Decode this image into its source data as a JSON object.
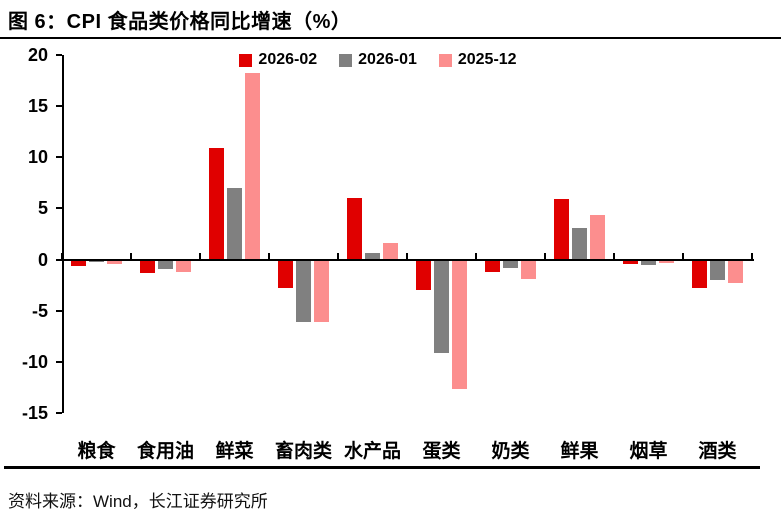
{
  "figure": {
    "title": "图 6：CPI 食品类价格同比增速（%）",
    "source_note": "资料来源：Wind，长江证券研究所"
  },
  "chart_data": {
    "type": "bar",
    "title": "CPI 食品类价格同比增速（%）",
    "categories": [
      "粮食",
      "食用油",
      "鲜菜",
      "畜肉类",
      "水产品",
      "蛋类",
      "奶类",
      "鲜果",
      "烟草",
      "酒类"
    ],
    "series": [
      {
        "name": "2026-02",
        "color": "#E00000",
        "values": [
          -0.6,
          -1.3,
          10.9,
          -2.8,
          6.0,
          -3.0,
          -1.2,
          5.9,
          -0.4,
          -2.8
        ]
      },
      {
        "name": "2026-01",
        "color": "#808080",
        "values": [
          -0.2,
          -0.9,
          7.0,
          -6.1,
          0.6,
          -9.1,
          -0.8,
          3.1,
          -0.5,
          -2.0
        ]
      },
      {
        "name": "2025-12",
        "color": "#FC8E8E",
        "values": [
          -0.4,
          -1.2,
          18.2,
          -6.1,
          1.6,
          -12.7,
          -1.9,
          4.4,
          -0.3,
          -2.3
        ]
      }
    ],
    "xlabel": "",
    "ylabel": "",
    "ylim": [
      -15,
      20
    ],
    "ytick_step": 5,
    "yticks": [
      20,
      15,
      10,
      5,
      0,
      -5,
      -10,
      -15
    ],
    "legend_position": "top-center",
    "grid": false,
    "axis_color": "#000000"
  }
}
